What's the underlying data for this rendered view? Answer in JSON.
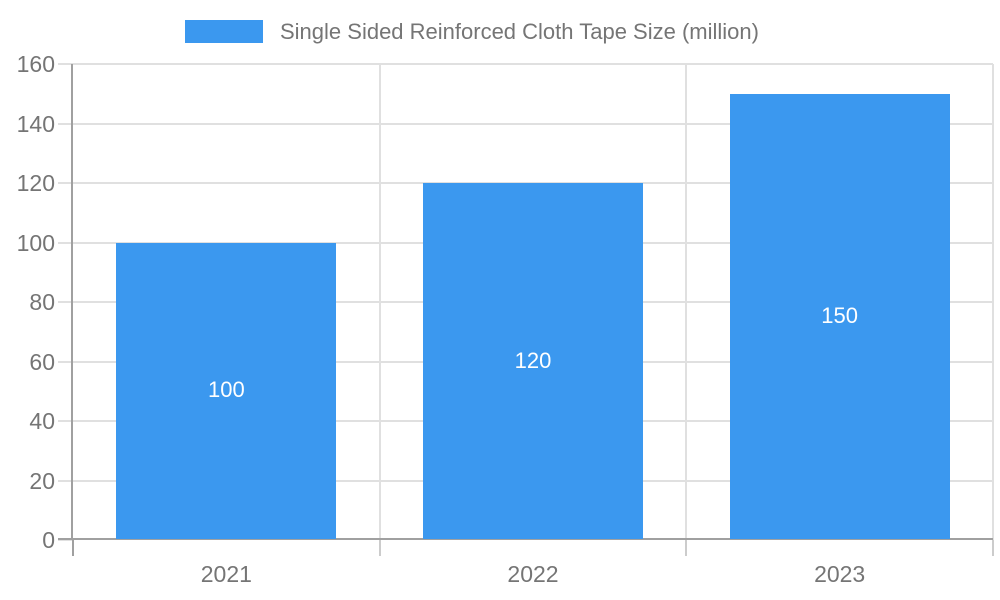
{
  "legend": {
    "label": "Single Sided Reinforced Cloth Tape Size (million)"
  },
  "chart_data": {
    "type": "bar",
    "title": "Single Sided Reinforced Cloth Tape Size (million)",
    "categories": [
      "2021",
      "2022",
      "2023"
    ],
    "values": [
      100,
      120,
      150
    ],
    "bar_labels": [
      "100",
      "120",
      "150"
    ],
    "xlabel": "",
    "ylabel": "",
    "ylim": [
      0,
      160
    ],
    "yticks": [
      0,
      20,
      40,
      60,
      80,
      100,
      120,
      140,
      160
    ],
    "grid": true,
    "legend_position": "top",
    "colors": {
      "bar": "#3B98EF",
      "bar_label_text": "#FFFFFF",
      "axis_text": "#757575",
      "legend_text": "#757575",
      "grid_line": "#E0E0E0",
      "axis_line": "#A0A0A0",
      "tick_line": "#CCCCCC"
    }
  }
}
